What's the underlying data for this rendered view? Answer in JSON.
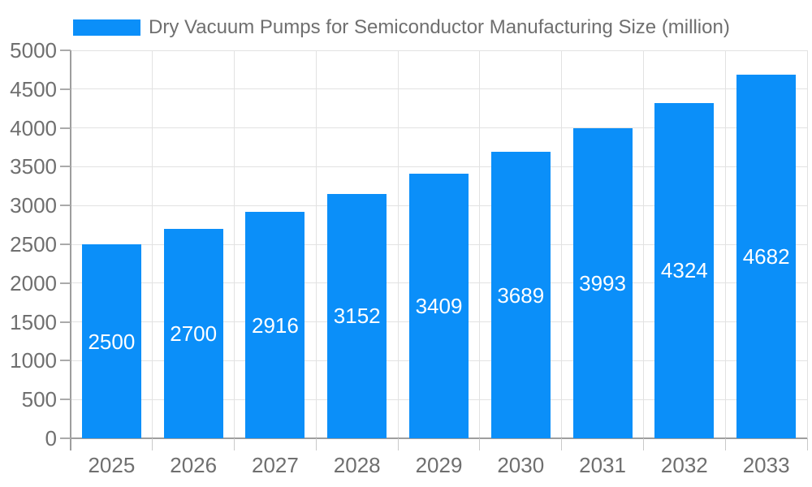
{
  "chart_data": {
    "type": "bar",
    "title": "Dry Vacuum Pumps for Semiconductor Manufacturing Size (million)",
    "categories": [
      "2025",
      "2026",
      "2027",
      "2028",
      "2029",
      "2030",
      "2031",
      "2032",
      "2033"
    ],
    "values": [
      2500,
      2700,
      2916,
      3152,
      3409,
      3689,
      3993,
      4324,
      4682
    ],
    "series": [
      {
        "name": "Dry Vacuum Pumps for Semiconductor Manufacturing Size (million)",
        "values": [
          2500,
          2700,
          2916,
          3152,
          3409,
          3689,
          3993,
          4324,
          4682
        ]
      }
    ],
    "xlabel": "",
    "ylabel": "",
    "ylim": [
      0,
      5000
    ],
    "ytick_interval": 500,
    "yticks": [
      0,
      500,
      1000,
      1500,
      2000,
      2500,
      3000,
      3500,
      4000,
      4500,
      5000
    ],
    "grid": true,
    "legend_position": "top",
    "value_labels": "inside-center"
  },
  "colors": {
    "bar": "#0b8ff9",
    "value_label": "#ffffff",
    "grid": "#e2e2e2",
    "axis": "#9e9e9e",
    "tick": "#aaaaaa",
    "xtick": "#c9c9c9",
    "tick_label": "#6f6f6f",
    "background": "#ffffff"
  }
}
